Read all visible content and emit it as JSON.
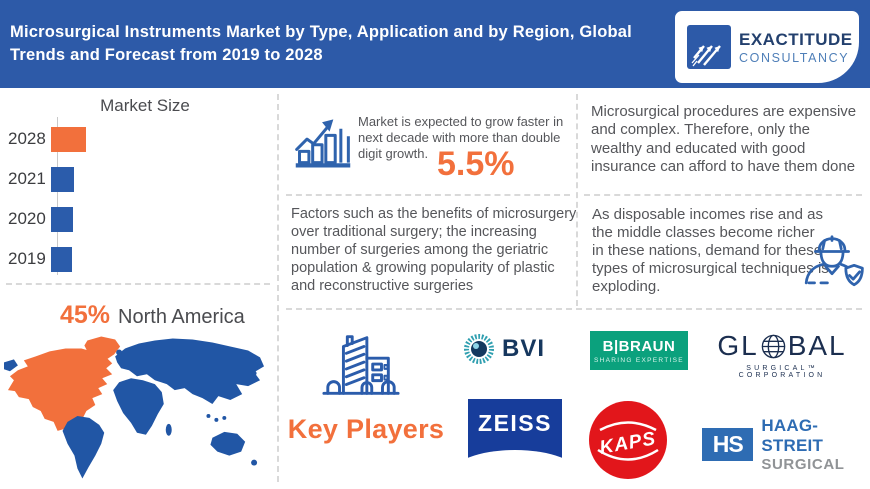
{
  "header": {
    "title_line1": "Microsurgical Instruments Market by Type, Application and by Region, Global",
    "title_line2": "Trends and Forecast from 2019 to 2028",
    "logo_name": "EXACTITUDE",
    "logo_subname": "CONSULTANCY"
  },
  "chart_data": {
    "type": "bar",
    "orientation": "horizontal",
    "title": "Market Size",
    "categories": [
      "2028",
      "2021",
      "2020",
      "2019"
    ],
    "values": [
      35,
      23,
      22,
      21
    ],
    "units": "relative bar length (no numeric axis shown in figure)",
    "bar_colors": [
      "#f2703c",
      "#2b5cab",
      "#2b5cab",
      "#2b5cab"
    ],
    "xlabel": "",
    "ylabel": "",
    "grid": false,
    "legend": false
  },
  "region": {
    "share": "45%",
    "name": "North America",
    "map_highlight_color": "#f2703c",
    "map_base_color": "#2156a5"
  },
  "growth": {
    "text": "Market is expected to grow faster in next decade with more than double digit growth.",
    "value": "5.5%"
  },
  "insights": {
    "expensive": "Microsurgical procedures are expensive and complex. Therefore, only the wealthy and educated with good insurance can afford to have them done",
    "factors": "Factors such as the benefits of microsurgery over traditional surgery; the increasing number of surgeries among the geriatric population & growing popularity of plastic and reconstructive surgeries",
    "income": "As disposable incomes rise and as the middle classes become richer in these nations, demand for these types of microsurgical techniques is exploding."
  },
  "key_players": {
    "label": "Key Players",
    "logos": [
      {
        "name": "BVI",
        "text": "BVI"
      },
      {
        "name": "B. Braun",
        "text": "B|BRAUN",
        "tagline": "SHARING EXPERTISE"
      },
      {
        "name": "Global Surgical Corporation",
        "part1": "GL",
        "part2": "BAL",
        "tagline": "SURGICAL™ CORPORATION"
      },
      {
        "name": "ZEISS",
        "text": "ZEISS"
      },
      {
        "name": "KAPS",
        "text": "KAPS"
      },
      {
        "name": "Haag-Streit Surgical",
        "abbr": "HS",
        "line1": "HAAG-STREIT",
        "line2": "SURGICAL"
      }
    ]
  },
  "colors": {
    "header_blue": "#2d5aa8",
    "accent_orange": "#f2703c",
    "bar_blue": "#2b5cab",
    "map_blue": "#2156a5",
    "body_text": "#55565a",
    "braun_green": "#0ba17d",
    "kaps_red": "#e2161b",
    "zeiss_blue": "#173d9b",
    "navy": "#1b2e4f",
    "haag_blue": "#2e6cb3",
    "bvi_teal": "#2f9fb0"
  }
}
